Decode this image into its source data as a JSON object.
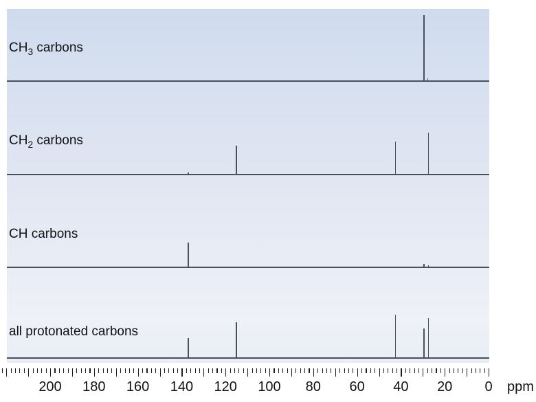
{
  "figure": {
    "unit_label": "ppm",
    "colors": {
      "panel_bg_top": "#cfdcee",
      "panel_bg_mid": "#e0e5f2",
      "panel_bg_bottom": "#eef1f7",
      "trace": "#4a505a",
      "tick": "#1f1f1f",
      "text": "#111111"
    }
  },
  "chart_data": {
    "type": "line",
    "subtype": "nmr-dept-subspectra",
    "xlabel": "ppm",
    "axis": {
      "unit": "ppm",
      "range_ppm": [
        222,
        0
      ],
      "tick_labels": [
        "200",
        "180",
        "160",
        "140",
        "120",
        "100",
        "80",
        "60",
        "40",
        "20",
        "0"
      ],
      "tick_label_values": [
        200,
        180,
        160,
        140,
        120,
        100,
        80,
        60,
        40,
        20,
        0
      ],
      "major_tick_step": 10,
      "minor_tick_step": 2
    },
    "intensity_unit": "px",
    "panels": [
      {
        "id": "ch3",
        "label_prefix": "CH",
        "label_sub": "3",
        "label_rest": " carbons",
        "peaks": [
          {
            "ppm": 29.5,
            "intensity": 95
          },
          {
            "ppm": 27.8,
            "intensity": 3
          }
        ]
      },
      {
        "id": "ch2",
        "label_prefix": "CH",
        "label_sub": "2",
        "label_rest": " carbons",
        "peaks": [
          {
            "ppm": 137,
            "intensity": 2
          },
          {
            "ppm": 115,
            "intensity": 41
          },
          {
            "ppm": 42.4,
            "intensity": 47
          },
          {
            "ppm": 27.4,
            "intensity": 60
          }
        ]
      },
      {
        "id": "ch",
        "label_prefix": "CH",
        "label_sub": "",
        "label_rest": " carbons",
        "peaks": [
          {
            "ppm": 137,
            "intensity": 35
          },
          {
            "ppm": 29.5,
            "intensity": 4
          },
          {
            "ppm": 27.4,
            "intensity": 2
          }
        ]
      },
      {
        "id": "all-protonated",
        "label_prefix": "all protonated carbons",
        "label_sub": "",
        "label_rest": "",
        "peaks": [
          {
            "ppm": 137,
            "intensity": 28
          },
          {
            "ppm": 115,
            "intensity": 51
          },
          {
            "ppm": 42.4,
            "intensity": 62
          },
          {
            "ppm": 29.5,
            "intensity": 42
          },
          {
            "ppm": 27.4,
            "intensity": 57
          }
        ]
      }
    ]
  }
}
